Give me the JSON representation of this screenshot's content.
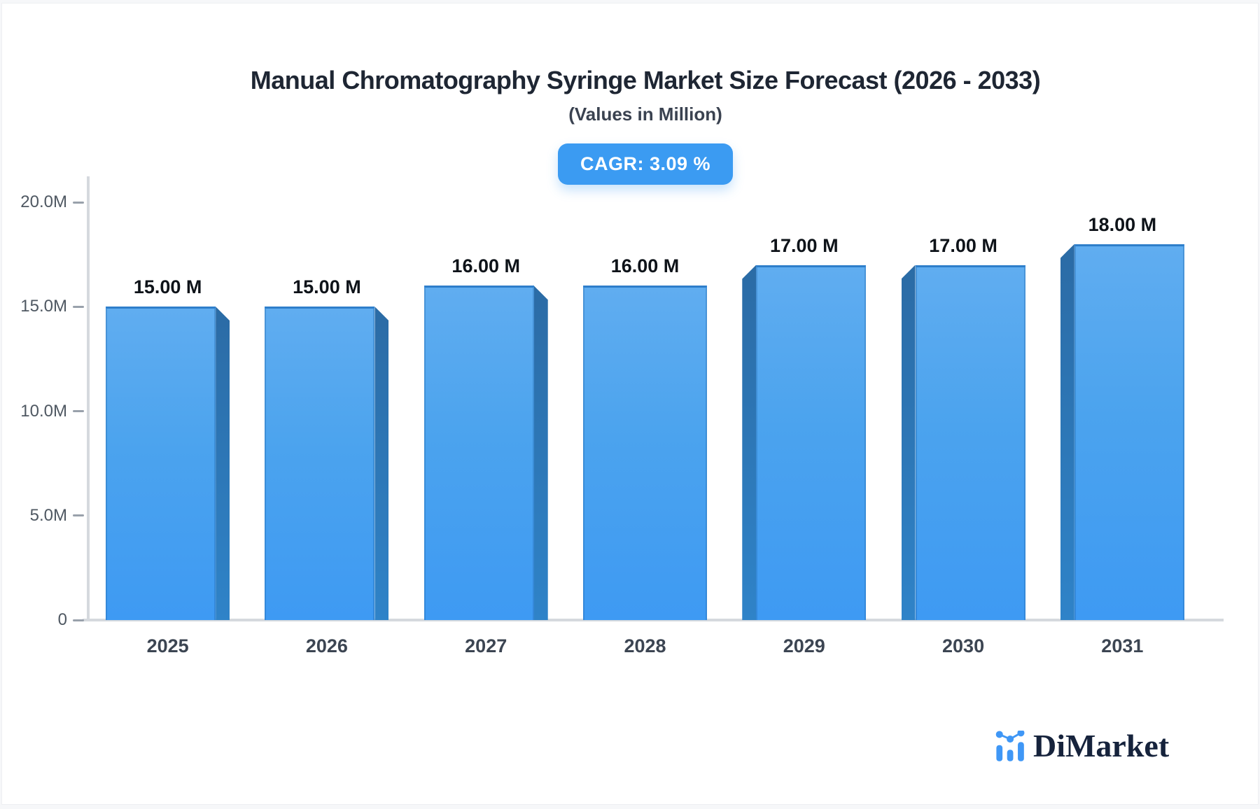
{
  "page": {
    "title": "Manual Chromatography Syringe Market Size Forecast (2026 - 2033)",
    "subtitle": "(Values in Million)",
    "cagr_badge": "CAGR: 3.09 %",
    "brand": {
      "name": "DiMarket",
      "logo_icon": "bar-line-chart-icon"
    }
  },
  "chart_data": {
    "type": "bar",
    "title": "Manual Chromatography Syringe Market Size Forecast (2026 - 2033)",
    "subtitle": "(Values in Million)",
    "unit": "Million",
    "categories": [
      "2025",
      "2026",
      "2027",
      "2028",
      "2029",
      "2030",
      "2031"
    ],
    "values": [
      15,
      15,
      16,
      16,
      17,
      17,
      18
    ],
    "value_labels": [
      "15.00 M",
      "15.00 M",
      "16.00 M",
      "16.00 M",
      "17.00 M",
      "17.00 M",
      "18.00 M"
    ],
    "annotations": [
      "CAGR: 3.09 %"
    ],
    "xlabel": "",
    "ylabel": "",
    "ylim": [
      0,
      20
    ],
    "y_ticks": [
      {
        "label": "0",
        "value": 0
      },
      {
        "label": "5.0M",
        "value": 5
      },
      {
        "label": "10.0M",
        "value": 10
      },
      {
        "label": "15.0M",
        "value": 15
      },
      {
        "label": "20.0M",
        "value": 20
      }
    ],
    "grid": false,
    "legend": false,
    "style": "3d-bevel-bars",
    "colors": {
      "accent": "#3b9bf2",
      "bar_face_top": "#60adf0",
      "bar_face_bottom": "#3e9af3",
      "bar_side_top": "#2b6ba5",
      "bar_side_bottom": "#2f83c8",
      "axis_line": "#d5d9de",
      "logo_blue": "#3f97f6",
      "logo_navy": "#16233c"
    }
  }
}
